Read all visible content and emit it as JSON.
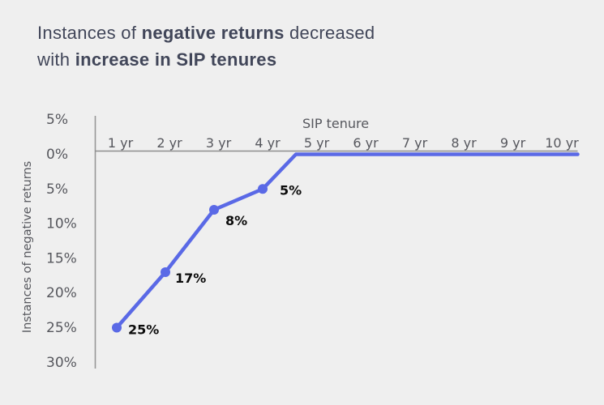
{
  "title": {
    "line1": {
      "normal1": "Instances of ",
      "bold": "negative returns",
      "normal2": " decreased"
    },
    "line2": {
      "normal": "with ",
      "bold": "increase in SIP tenures"
    }
  },
  "chart": {
    "x_axis_title": "SIP tenure",
    "y_axis_title": "Instances of negative returns",
    "x_ticks": [
      "1 yr",
      "2 yr",
      "3 yr",
      "4 yr",
      "5 yr",
      "6 yr",
      "7 yr",
      "8 yr",
      "9 yr",
      "10 yr"
    ],
    "y_ticks": [
      "5%",
      "0%",
      "5%",
      "10%",
      "15%",
      "20%",
      "25%",
      "30%"
    ]
  },
  "chart_data": {
    "type": "line",
    "title": "Instances of negative returns decreased with increase in SIP tenures",
    "xlabel": "SIP tenure",
    "ylabel": "Instances of negative returns",
    "x_categories": [
      "1 yr",
      "2 yr",
      "3 yr",
      "4 yr",
      "5 yr",
      "6 yr",
      "7 yr",
      "8 yr",
      "9 yr",
      "10 yr"
    ],
    "x": [
      1,
      2,
      3,
      4,
      5,
      6,
      7,
      8,
      9,
      10
    ],
    "values": [
      25,
      17,
      8,
      5,
      0,
      0,
      0,
      0,
      0,
      0
    ],
    "data_labels": [
      "25%",
      "17%",
      "8%",
      "5%"
    ],
    "y_axis": {
      "inverted": true,
      "tick_values": [
        -5,
        0,
        5,
        10,
        15,
        20,
        25,
        30
      ],
      "tick_labels": [
        "5%",
        "0%",
        "5%",
        "10%",
        "15%",
        "20%",
        "25%",
        "30%"
      ],
      "range": [
        -5,
        30
      ],
      "unit": "%"
    },
    "marker": "circle",
    "markers_only_on_nonzero_points": true,
    "grid": false,
    "legend": false,
    "line_color": "#5a69e6"
  },
  "colors": {
    "background": "#efefef",
    "title_text": "#414659",
    "axis_text": "#56575d",
    "axis_line": "#979797",
    "line": "#5a69e6",
    "data_label_text": "#0b0b0b"
  }
}
